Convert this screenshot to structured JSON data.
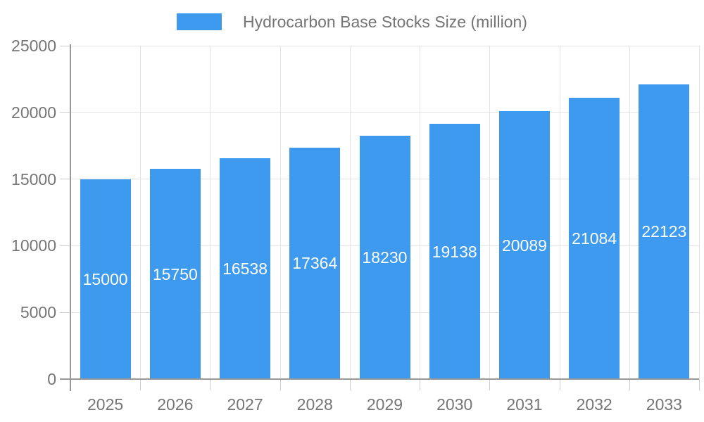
{
  "chart_data": {
    "type": "bar",
    "title": "Hydrocarbon Base Stocks Size (million)",
    "legend": "Hydrocarbon Base Stocks Size (million)",
    "legend_position": "top-center",
    "categories": [
      "2025",
      "2026",
      "2027",
      "2028",
      "2029",
      "2030",
      "2031",
      "2032",
      "2033"
    ],
    "values": [
      15000,
      15750,
      16538,
      17364,
      18230,
      19138,
      20089,
      21084,
      22123
    ],
    "xlabel": "",
    "ylabel": "",
    "ylim": [
      0,
      25000
    ],
    "y_ticks": [
      0,
      5000,
      10000,
      15000,
      20000,
      25000
    ],
    "grid": true,
    "bar_value_labels_inside": true,
    "colors": {
      "bar": "#3D9AEE",
      "bar_label": "#FFFFFF",
      "axis_text": "#757575",
      "axis_line": "#999999",
      "gridline": "#E3E3E3",
      "tick": "#CCCCCC",
      "background": "#FFFFFF"
    }
  }
}
